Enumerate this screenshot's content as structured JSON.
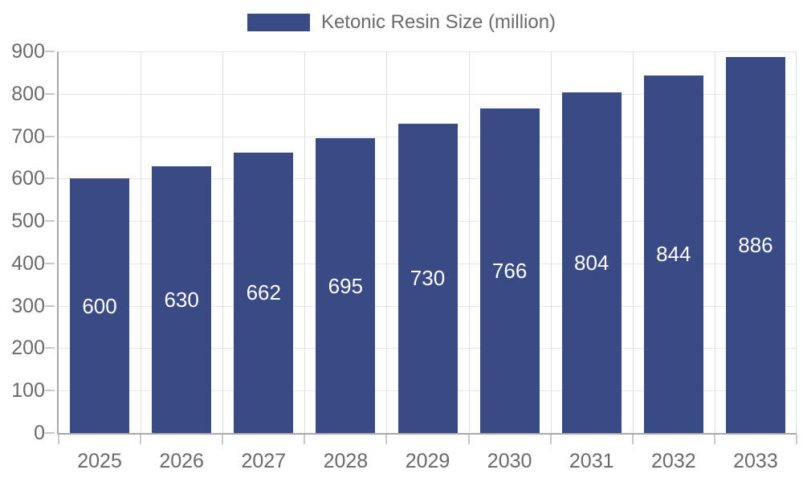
{
  "chart_data": {
    "type": "bar",
    "title": "",
    "legend": "Ketonic Resin Size (million)",
    "legend_position": "top",
    "categories": [
      "2025",
      "2026",
      "2027",
      "2028",
      "2029",
      "2030",
      "2031",
      "2032",
      "2033"
    ],
    "series": [
      {
        "name": "Ketonic Resin Size (million)",
        "values": [
          600,
          630,
          662,
          695,
          730,
          766,
          804,
          844,
          886
        ]
      }
    ],
    "xlabel": "",
    "ylabel": "",
    "ylim": [
      0,
      900
    ],
    "ytick_step": 100,
    "grid": true,
    "value_labels": "inside-center",
    "colors": {
      "bar": "#3a4a85",
      "value_label": "#ffffff",
      "axis_line": "#a8a8a8",
      "tick_mark": "#c9c9c9",
      "tick_label": "#6a6a6a",
      "grid_h": "#e7e7e7",
      "grid_v": "#dfdfe6",
      "legend_text": "#6a6a6a",
      "background": "#ffffff"
    }
  }
}
